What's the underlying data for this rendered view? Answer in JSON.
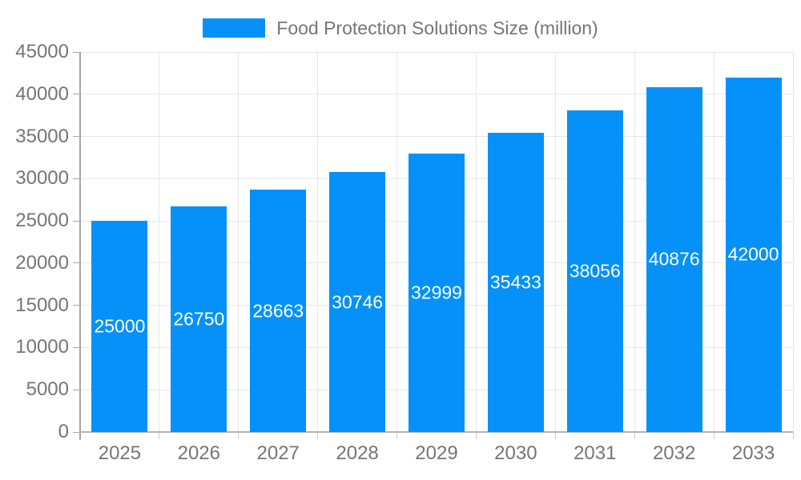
{
  "chart_data": {
    "type": "bar",
    "legend_label": "Food Protection Solutions Size (million)",
    "categories": [
      "2025",
      "2026",
      "2027",
      "2028",
      "2029",
      "2030",
      "2031",
      "2032",
      "2033"
    ],
    "values": [
      25000,
      26750,
      28663,
      30746,
      32999,
      35433,
      38056,
      40876,
      42000
    ],
    "title": "",
    "xlabel": "",
    "ylabel": "",
    "ylim": [
      0,
      45000
    ],
    "ytick_step": 5000,
    "grid": true,
    "legend_position": "top",
    "bar_color": "#0591f8",
    "bar_label_color": "#ffffff",
    "axis_text_color": "#757575",
    "grid_color": "#e6e6e6",
    "y_axis_line_color": "#a6a6a6",
    "x_axis_line_color": "#b3b3b3",
    "x_tick_color": "#cccccc"
  }
}
